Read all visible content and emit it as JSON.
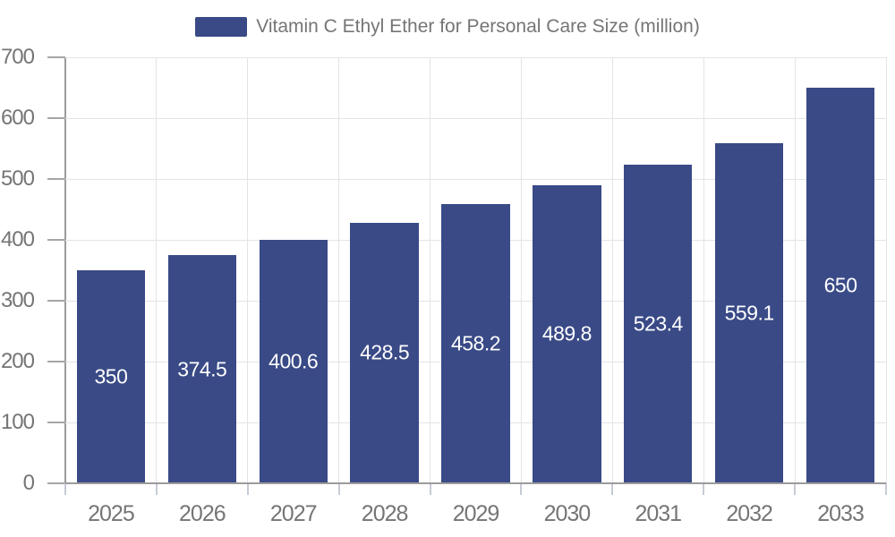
{
  "legend": {
    "label": "Vitamin C Ethyl Ether for Personal Care Size (million)"
  },
  "chart_data": {
    "type": "bar",
    "title": "Vitamin C Ethyl Ether for Personal Care Size (million)",
    "legend_entries": [
      "Vitamin C Ethyl Ether for Personal Care Size (million)"
    ],
    "legend_position": "top-center",
    "categories": [
      "2025",
      "2026",
      "2027",
      "2028",
      "2029",
      "2030",
      "2031",
      "2032",
      "2033"
    ],
    "series": [
      {
        "name": "Vitamin C Ethyl Ether for Personal Care Size (million)",
        "values": [
          350,
          374.5,
          400.6,
          428.5,
          458.2,
          489.8,
          523.4,
          559.1,
          650
        ],
        "value_labels": [
          "350",
          "374.5",
          "400.6",
          "428.5",
          "458.2",
          "489.8",
          "523.4",
          "559.1",
          "650"
        ]
      }
    ],
    "xlabel": "",
    "ylabel": "",
    "ylim": [
      0,
      700
    ],
    "yticks": [
      0,
      100,
      200,
      300,
      400,
      500,
      600,
      700
    ],
    "grid": true,
    "value_label_position": "inside-center"
  },
  "colors": {
    "bar": "#394A86",
    "legend_swatch": "#394A86",
    "value_label": "#ffffff",
    "axis_text": "#757575",
    "grid_line": "#e3e4e8",
    "axis_line": "#9b9b9b",
    "background": "#ffffff"
  }
}
